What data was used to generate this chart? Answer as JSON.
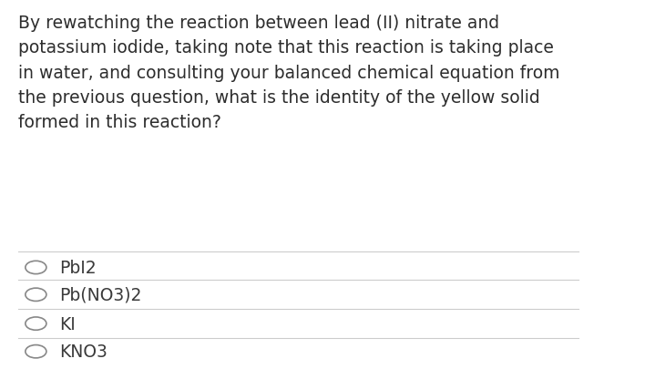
{
  "background_color": "#ffffff",
  "question_text": "By rewatching the reaction between lead (II) nitrate and\npotassium iodide, taking note that this reaction is taking place\nin water, and consulting your balanced chemical equation from\nthe previous question, what is the identity of the yellow solid\nformed in this reaction?",
  "options": [
    "PbI2",
    "Pb(NO3)2",
    "KI",
    "KNO3"
  ],
  "text_color": "#2d2d2d",
  "option_text_color": "#3a3a3a",
  "line_color": "#cccccc",
  "circle_color": "#888888",
  "question_fontsize": 13.5,
  "option_fontsize": 13.5,
  "fig_width": 7.08,
  "fig_height": 4.06,
  "dpi": 100
}
